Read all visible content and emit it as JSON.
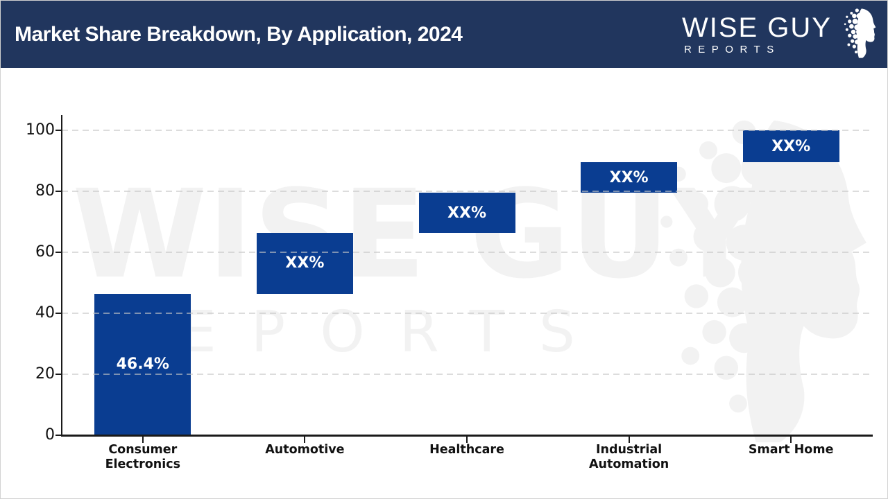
{
  "page": {
    "background": "#ffffff",
    "border_color": "#d2d2d2"
  },
  "header": {
    "title": "Market Share Breakdown, By Application, 2024",
    "bg_color": "#21365e",
    "text_color": "#ffffff",
    "logo": {
      "name": "WISE GUY",
      "sub": "REPORTS"
    }
  },
  "watermark": {
    "line1": "WISE GUY",
    "line2": "REPORTS"
  },
  "chart_data": {
    "type": "bar",
    "subtype": "floating-waterfall",
    "title": "Market Share Breakdown, By Application, 2024",
    "xlabel": "",
    "ylabel": "",
    "categories": [
      "Consumer Electronics",
      "Automotive",
      "Healthcare",
      "Industrial Automation",
      "Smart Home"
    ],
    "category_label_lines": [
      [
        "Consumer",
        "Electronics"
      ],
      [
        "Automotive"
      ],
      [
        "Healthcare"
      ],
      [
        "Industrial",
        "Automation"
      ],
      [
        "Smart Home"
      ]
    ],
    "segments": [
      {
        "category": "Consumer Electronics",
        "start": 0,
        "end": 46.4,
        "label": "46.4%"
      },
      {
        "category": "Automotive",
        "start": 46.4,
        "end": 66.4,
        "label": "XX%"
      },
      {
        "category": "Healthcare",
        "start": 66.4,
        "end": 79.5,
        "label": "XX%"
      },
      {
        "category": "Industrial Automation",
        "start": 79.5,
        "end": 89.5,
        "label": "XX%"
      },
      {
        "category": "Smart Home",
        "start": 89.5,
        "end": 100,
        "label": "XX%"
      }
    ],
    "ylim": [
      0,
      105
    ],
    "yticks": [
      0,
      20,
      40,
      60,
      80,
      100
    ],
    "grid": {
      "horizontal": true,
      "style": "dashed",
      "color": "#d8d8d8",
      "drawn_over_bars": true
    },
    "legend": null,
    "bar_color": "#0a3d91",
    "bar_label_color": "#ffffff",
    "axis_color": "#1a1a1a"
  }
}
